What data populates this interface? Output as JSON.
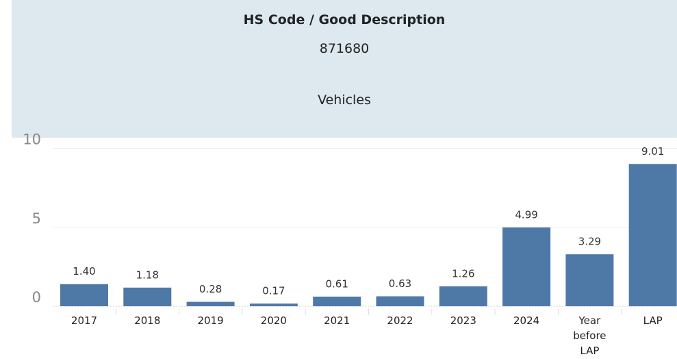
{
  "header": {
    "title": "HS Code / Good Description",
    "code": "871680",
    "description": "Vehicles"
  },
  "chart_data": {
    "type": "bar",
    "categories": [
      "2017",
      "2018",
      "2019",
      "2020",
      "2021",
      "2022",
      "2023",
      "2024",
      "Year before LAP",
      "LAP"
    ],
    "values": [
      1.4,
      1.18,
      0.28,
      0.17,
      0.61,
      0.63,
      1.26,
      4.99,
      3.29,
      9.01
    ],
    "value_labels": [
      "1.40",
      "1.18",
      "0.28",
      "0.17",
      "0.61",
      "0.63",
      "1.26",
      "4.99",
      "3.29",
      "9.01"
    ],
    "color": "#4e79a7",
    "ylim": [
      0,
      10.5
    ],
    "yticks": [
      0,
      5,
      10
    ],
    "grid": true
  }
}
